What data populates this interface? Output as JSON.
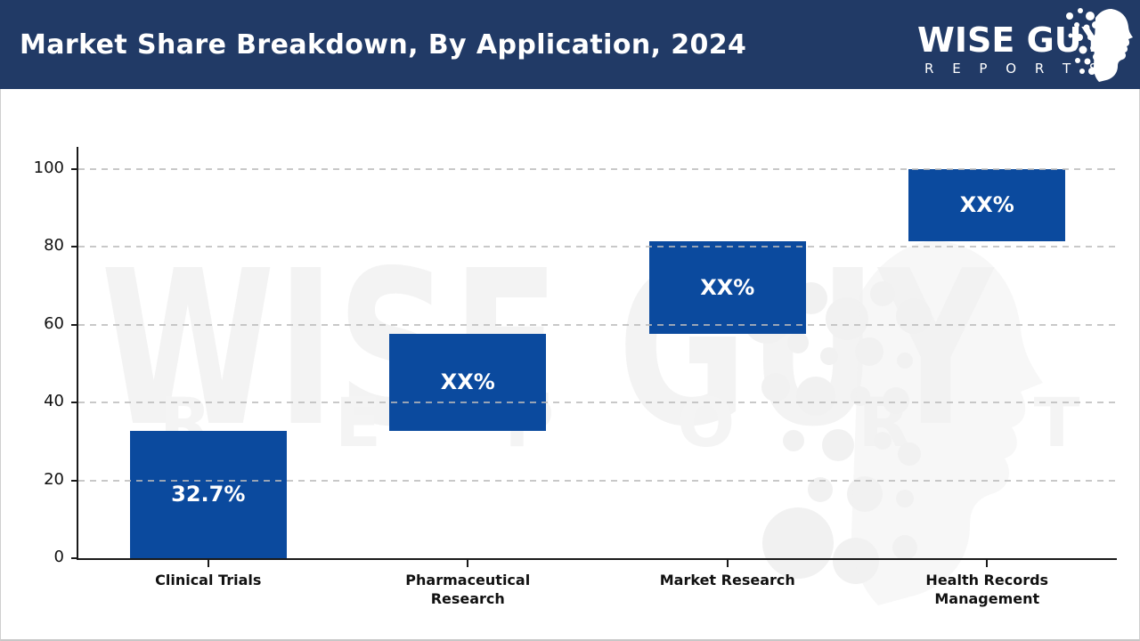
{
  "header": {
    "title": "Market Share Breakdown, By Application, 2024",
    "bg_color": "#213a66",
    "logo": {
      "line1": "WISE GUY",
      "line2": "R E P O R T S"
    }
  },
  "watermark": {
    "line1": "WISE GUY",
    "line2": "REPORTS"
  },
  "chart_data": {
    "type": "bar",
    "subtype": "waterfall",
    "title": "Market Share Breakdown, By Application, 2024",
    "xlabel": "",
    "ylabel": "",
    "categories": [
      "Clinical Trials",
      "Pharmaceutical Research",
      "Market Research",
      "Health Records Management"
    ],
    "category_lines": [
      [
        "Clinical Trials"
      ],
      [
        "Pharmaceutical",
        "Research"
      ],
      [
        "Market Research"
      ],
      [
        "Health Records",
        "Management"
      ]
    ],
    "segments": [
      {
        "start": 0,
        "end": 32.7,
        "label": "32.7%"
      },
      {
        "start": 32.7,
        "end": 57.7,
        "label": "XX%"
      },
      {
        "start": 57.7,
        "end": 81.3,
        "label": "XX%"
      },
      {
        "start": 81.3,
        "end": 100,
        "label": "XX%"
      }
    ],
    "yticks": [
      0,
      20,
      40,
      60,
      80,
      100
    ],
    "ylim": [
      0,
      105.6
    ],
    "grid": "horizontal dashed",
    "legend": "none",
    "bar_color": "#0b4a9e",
    "value_label_color": "#ffffff"
  }
}
